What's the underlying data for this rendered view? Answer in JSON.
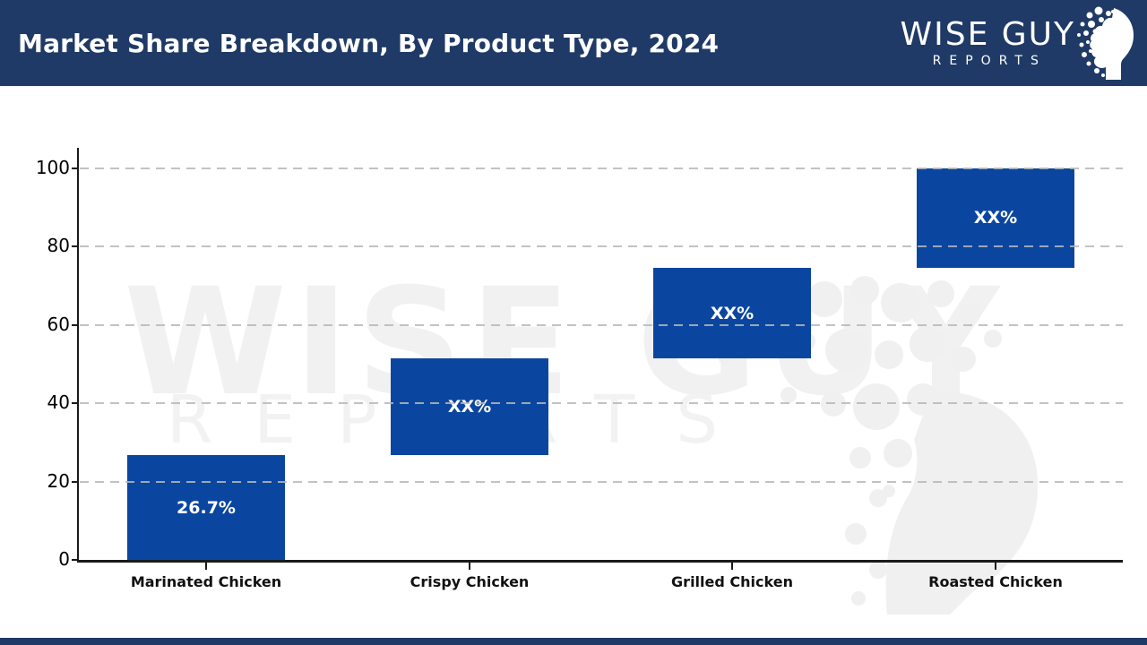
{
  "header": {
    "title": "Market Share Breakdown, By Product Type, 2024",
    "logo_line1": "WISE GUY",
    "logo_line2": "REPORTS"
  },
  "watermark": {
    "line1": "WISE GUY",
    "line2": "REPORTS"
  },
  "chart_data": {
    "type": "bar",
    "subtype": "floating-waterfall-segments",
    "title": "Market Share Breakdown, By Product Type, 2024",
    "categories": [
      "Marinated Chicken",
      "Crispy Chicken",
      "Grilled Chicken",
      "Roasted Chicken"
    ],
    "segments": [
      {
        "category": "Marinated Chicken",
        "start": 0,
        "end": 26.7,
        "label": "26.7%"
      },
      {
        "category": "Crispy Chicken",
        "start": 26.7,
        "end": 51.4,
        "label": "XX%"
      },
      {
        "category": "Grilled Chicken",
        "start": 51.4,
        "end": 74.5,
        "label": "XX%"
      },
      {
        "category": "Roasted Chicken",
        "start": 74.5,
        "end": 100,
        "label": "XX%"
      }
    ],
    "ylim": [
      0,
      100
    ],
    "yticks": [
      0,
      20,
      40,
      60,
      80,
      100
    ],
    "grid": "horizontal-dashed",
    "legend": "none",
    "xlabel": "",
    "ylabel": ""
  },
  "colors": {
    "header_bg": "#1f3a66",
    "footer_bg": "#1f3a66",
    "background": "#ffffff",
    "bar": "#0a46a0",
    "bar_label": "#ffffff",
    "axis": "#1a1a1a",
    "gridline": "#b8b8b8",
    "tick_label": "#000000",
    "watermark": "#f1f1f1"
  }
}
